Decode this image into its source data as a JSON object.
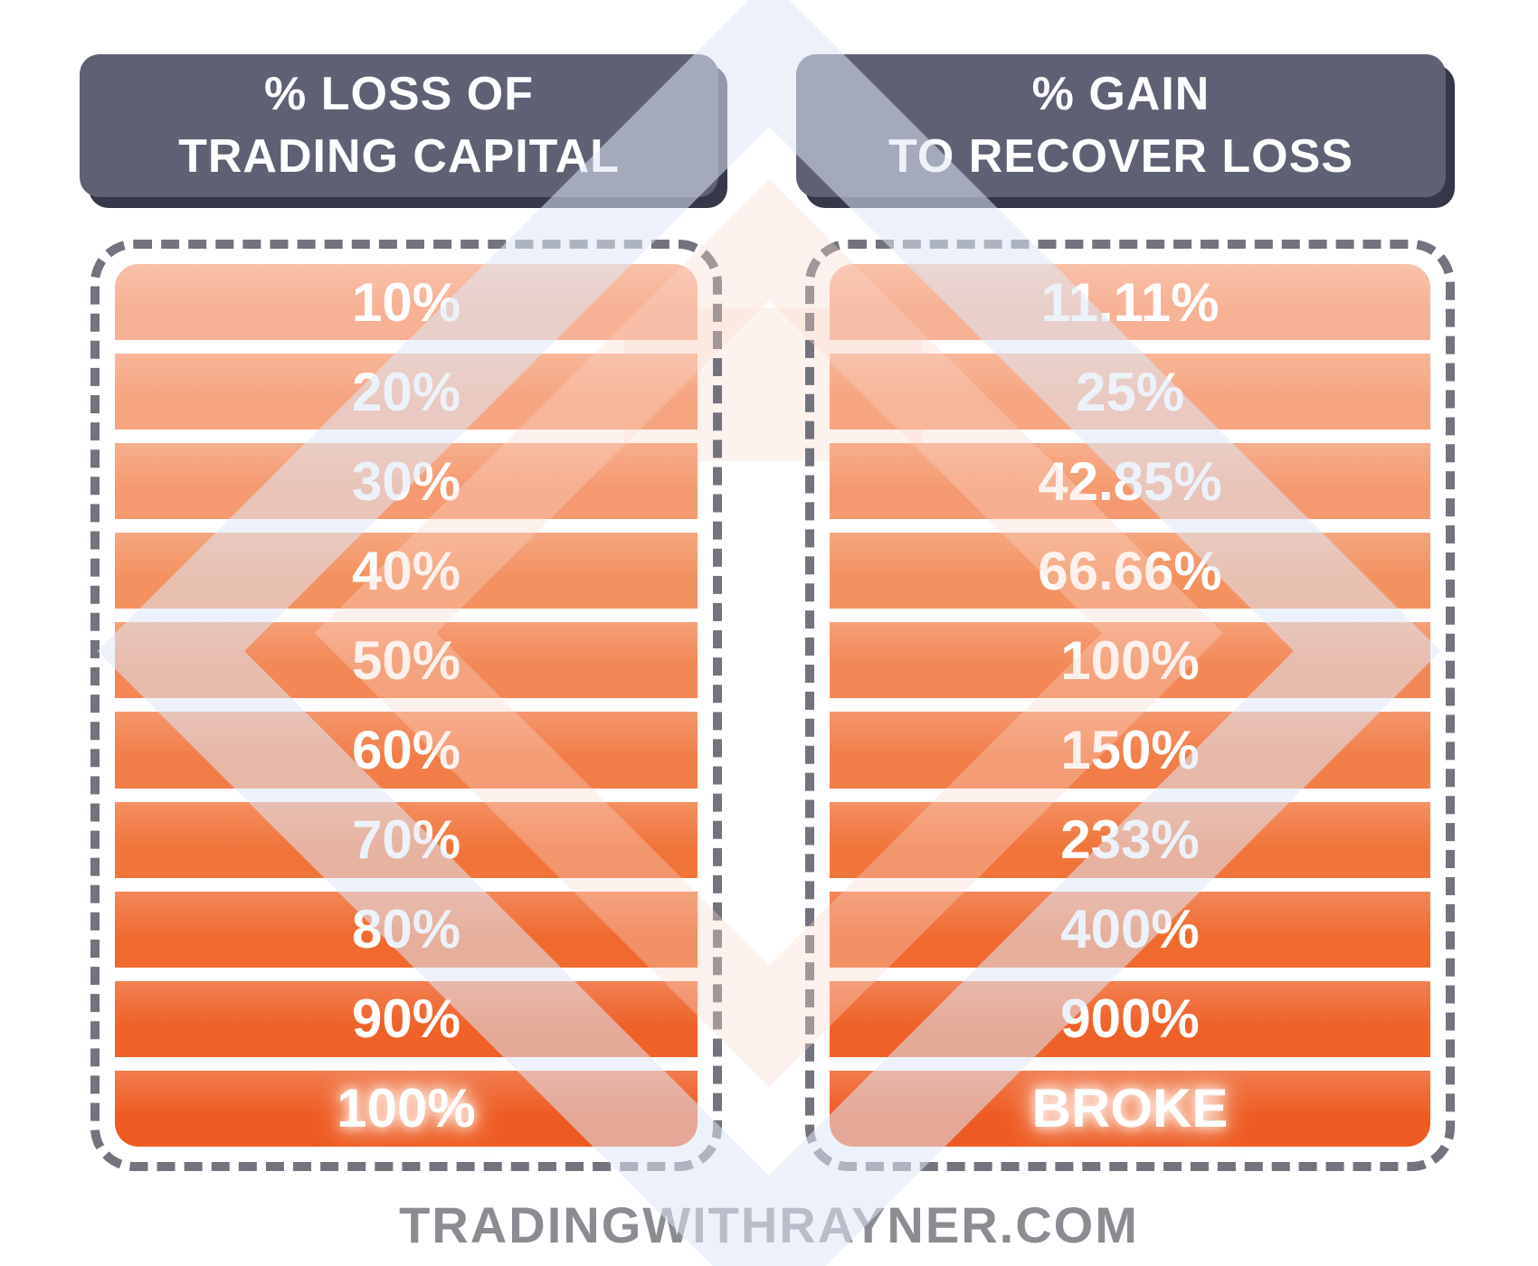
{
  "title_left": {
    "line1": "% LOSS OF",
    "line2": "TRADING CAPITAL"
  },
  "title_right": {
    "line1": "% GAIN",
    "line2": "TO RECOVER LOSS"
  },
  "footer": {
    "site": "TRADINGWITHRAYNER.COM"
  },
  "colors": {
    "header_bg": "#5e6074",
    "header_shadow": "#363849",
    "header_text": "#ffffff",
    "row_text": "#ffffff",
    "dash_border": "#73737e",
    "footer_text": "#8b8b92",
    "watermark_blue": "#dee8f5",
    "watermark_pink": "#f8d8ca"
  },
  "chart_data": {
    "type": "table",
    "columns": [
      "% Loss of Trading Capital",
      "% Gain to Recover Loss"
    ],
    "rows": [
      {
        "loss": "10%",
        "gain": "11.11%",
        "color": "#f7b194",
        "glow": false
      },
      {
        "loss": "20%",
        "gain": "25%",
        "color": "#f6a580",
        "glow": false
      },
      {
        "loss": "30%",
        "gain": "42.85%",
        "color": "#f59a70",
        "glow": false
      },
      {
        "loss": "40%",
        "gain": "66.66%",
        "color": "#f39160",
        "glow": false
      },
      {
        "loss": "50%",
        "gain": "100%",
        "color": "#f38755",
        "glow": false
      },
      {
        "loss": "60%",
        "gain": "150%",
        "color": "#f27d48",
        "glow": false
      },
      {
        "loss": "70%",
        "gain": "233%",
        "color": "#f1743b",
        "glow": false
      },
      {
        "loss": "80%",
        "gain": "400%",
        "color": "#f06a30",
        "glow": false
      },
      {
        "loss": "90%",
        "gain": "900%",
        "color": "#ef6128",
        "glow": false
      },
      {
        "loss": "100%",
        "gain": "BROKE",
        "color": "#ee5b22",
        "glow": true
      }
    ]
  }
}
